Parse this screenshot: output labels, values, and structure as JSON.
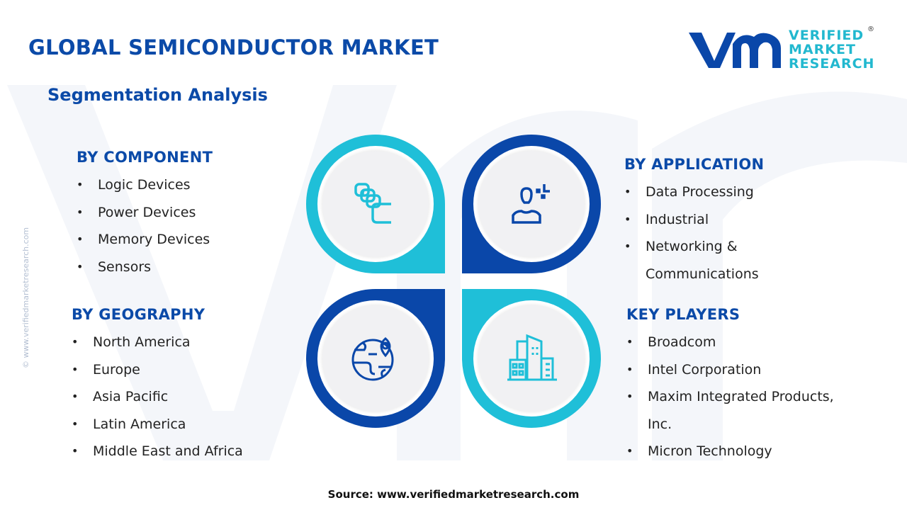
{
  "header": {
    "title": "GLOBAL SEMICONDUCTOR MARKET",
    "subtitle": "Segmentation Analysis"
  },
  "logo": {
    "line1": "VERIFIED",
    "line2": "MARKET",
    "line3": "RESEARCH",
    "mark": "®"
  },
  "side_text": "© www.verifiedmarketresearch.com",
  "colors": {
    "dark_blue": "#0a47a9",
    "cyan": "#1fbfd8",
    "heading": "#0b4aa8"
  },
  "component": {
    "title": "BY COMPONENT",
    "items": [
      "Logic Devices",
      "Power Devices",
      "Memory Devices",
      "Sensors"
    ]
  },
  "geography": {
    "title": "BY GEOGRAPHY",
    "items": [
      "North America",
      "Europe",
      "Asia Pacific",
      "Latin America",
      "Middle East and Africa"
    ]
  },
  "application": {
    "title": "BY APPLICATION",
    "items": [
      "Data Processing",
      "Industrial",
      "Networking &",
      "Communications"
    ]
  },
  "players": {
    "title": "KEY PLAYERS",
    "items": [
      "Broadcom",
      "Intel Corporation",
      "Maxim Integrated Products,",
      "Inc.",
      "Micron Technology"
    ]
  },
  "icons": [
    "chips-icon",
    "user-icon",
    "globe-location-icon",
    "buildings-icon"
  ],
  "source": "Source: www.verifiedmarketresearch.com"
}
